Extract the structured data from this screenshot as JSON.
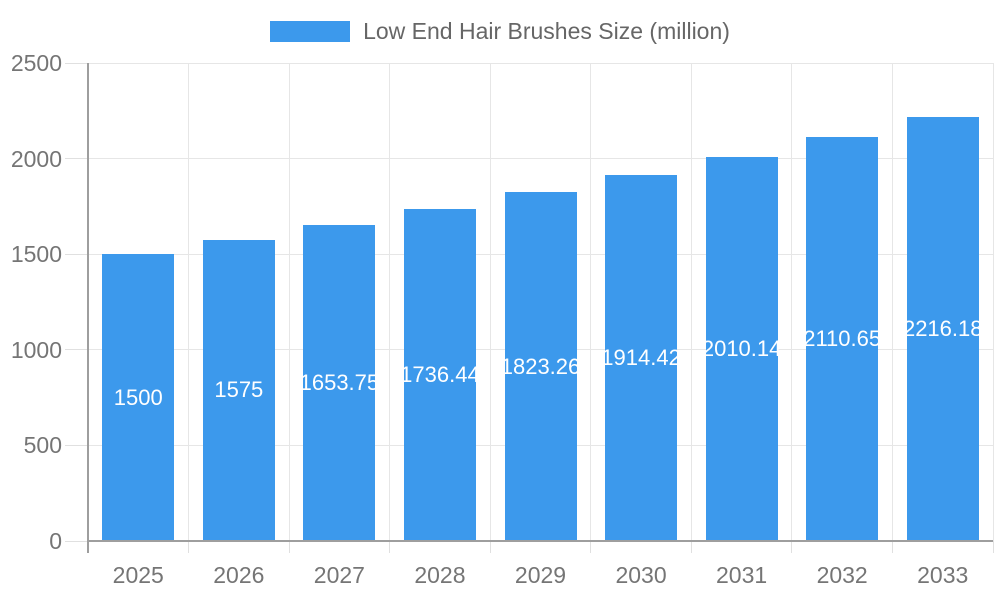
{
  "legend": {
    "label": "Low End Hair Brushes Size (million)"
  },
  "colors": {
    "bar": "#3C99EC",
    "gridline": "#E6E6E6",
    "tick": "#E0E0E0",
    "axis_line": "#9E9E9E",
    "axis_text": "#757575",
    "legend_text": "#666666",
    "value_label": "#FFFFFF",
    "background": "#FFFFFF"
  },
  "chart_data": {
    "type": "bar",
    "title": "Low End Hair Brushes Size (million)",
    "categories": [
      "2025",
      "2026",
      "2027",
      "2028",
      "2029",
      "2030",
      "2031",
      "2032",
      "2033"
    ],
    "values": [
      1500,
      1575,
      1653.75,
      1736.44,
      1823.26,
      1914.42,
      2010.14,
      2110.65,
      2216.18
    ],
    "value_labels": [
      "1500",
      "1575",
      "1653.75",
      "1736.44",
      "1823.26",
      "1914.42",
      "2010.14",
      "2110.65",
      "2216.18"
    ],
    "xlabel": "",
    "ylabel": "",
    "ylim": [
      0,
      2500
    ],
    "yticks": [
      0,
      500,
      1000,
      1500,
      2000,
      2500
    ],
    "grid": true,
    "legend_position": "top",
    "label_position": "inside-middle"
  }
}
